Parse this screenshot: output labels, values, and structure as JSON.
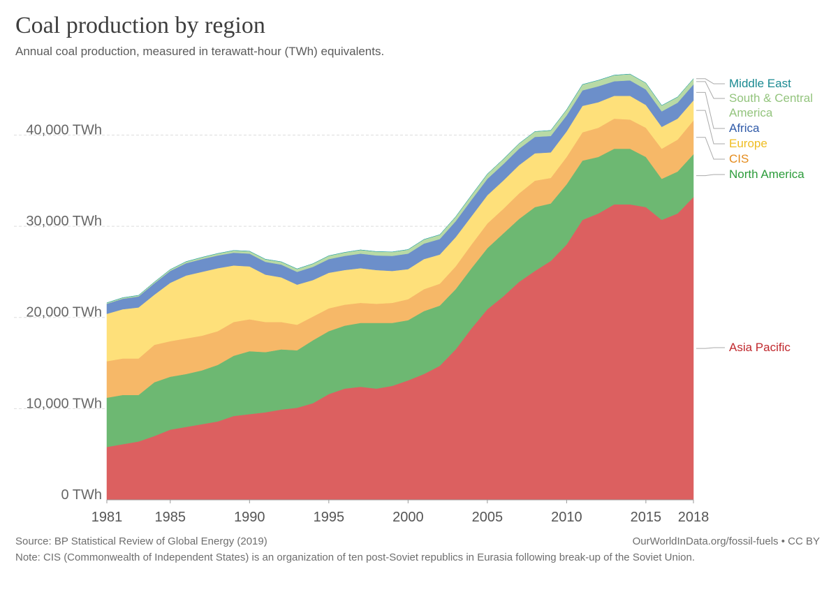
{
  "chart_data": {
    "type": "stacked-area",
    "title": "Coal production by region",
    "subtitle": "Annual coal production, measured in terawatt-hour (TWh) equivalents.",
    "source": "Source: BP Statistical Review of Global Energy (2019)",
    "url": "OurWorldInData.org/fossil-fuels • CC BY",
    "note": "Note: CIS (Commonwealth of Independent States) is an organization of ten post-Soviet republics in Eurasia following break-up of the Soviet Union.",
    "x": [
      1981,
      1982,
      1983,
      1984,
      1985,
      1986,
      1987,
      1988,
      1989,
      1990,
      1991,
      1992,
      1993,
      1994,
      1995,
      1996,
      1997,
      1998,
      1999,
      2000,
      2001,
      2002,
      2003,
      2004,
      2005,
      2006,
      2007,
      2008,
      2009,
      2010,
      2011,
      2012,
      2013,
      2014,
      2015,
      2016,
      2017,
      2018
    ],
    "xlim": [
      1981,
      2018
    ],
    "xticks": [
      1981,
      1985,
      1990,
      1995,
      2000,
      2005,
      2010,
      2015,
      2018
    ],
    "ylim": [
      0,
      47000
    ],
    "yticks": [
      {
        "value": 0,
        "label": "0 TWh"
      },
      {
        "value": 10000,
        "label": "10,000 TWh"
      },
      {
        "value": 20000,
        "label": "20,000 TWh"
      },
      {
        "value": 30000,
        "label": "30,000 TWh"
      },
      {
        "value": 40000,
        "label": "40,000 TWh"
      }
    ],
    "grid": true,
    "series": [
      {
        "name": "Asia Pacific",
        "color": "#dc6060",
        "label_color": "#c0282d",
        "values": [
          5800,
          6100,
          6400,
          7000,
          7700,
          8000,
          8300,
          8600,
          9200,
          9400,
          9600,
          9900,
          10100,
          10600,
          11600,
          12200,
          12400,
          12200,
          12500,
          13100,
          13800,
          14700,
          16500,
          18800,
          20900,
          22300,
          23900,
          25100,
          26200,
          28000,
          30700,
          31400,
          32400,
          32400,
          32100,
          30700,
          31400,
          33200
        ]
      },
      {
        "name": "North America",
        "color": "#6db872",
        "label_color": "#2c9c3b",
        "values": [
          5400,
          5400,
          5100,
          5900,
          5800,
          5800,
          5900,
          6200,
          6600,
          6900,
          6600,
          6600,
          6300,
          6900,
          6900,
          6900,
          7000,
          7200,
          6900,
          6600,
          6900,
          6600,
          6600,
          6600,
          6700,
          6900,
          6900,
          7000,
          6300,
          6600,
          6500,
          6200,
          6100,
          6100,
          5500,
          4500,
          4600,
          4700
        ]
      },
      {
        "name": "CIS",
        "color": "#f6b868",
        "label_color": "#e48b1c",
        "values": [
          4000,
          4000,
          4000,
          4100,
          3900,
          3900,
          3800,
          3700,
          3700,
          3500,
          3300,
          3000,
          2800,
          2600,
          2500,
          2300,
          2200,
          2100,
          2200,
          2300,
          2400,
          2400,
          2500,
          2600,
          2700,
          2700,
          2800,
          2900,
          2800,
          3000,
          3100,
          3200,
          3300,
          3200,
          3200,
          3300,
          3500,
          3700
        ]
      },
      {
        "name": "Europe",
        "color": "#fee07a",
        "label_color": "#efbd22",
        "values": [
          5200,
          5400,
          5600,
          5500,
          6400,
          6900,
          7000,
          6900,
          6200,
          5800,
          5200,
          4900,
          4400,
          4000,
          3900,
          3800,
          3800,
          3700,
          3500,
          3300,
          3300,
          3200,
          3200,
          3100,
          3100,
          3100,
          3100,
          3000,
          2800,
          2800,
          2900,
          2800,
          2500,
          2600,
          2500,
          2400,
          2300,
          2200
        ]
      },
      {
        "name": "Africa",
        "color": "#6c8fca",
        "label_color": "#2f5aa8",
        "values": [
          1100,
          1150,
          1200,
          1250,
          1300,
          1350,
          1400,
          1400,
          1400,
          1400,
          1400,
          1400,
          1400,
          1450,
          1500,
          1550,
          1600,
          1600,
          1650,
          1700,
          1700,
          1700,
          1750,
          1800,
          1800,
          1800,
          1800,
          1800,
          1800,
          1750,
          1700,
          1750,
          1600,
          1700,
          1700,
          1700,
          1750,
          1750
        ]
      },
      {
        "name": "South & Central America",
        "color": "#b8daa6",
        "label_color": "#93c47d",
        "values": [
          100,
          110,
          120,
          130,
          150,
          170,
          190,
          210,
          240,
          260,
          280,
          300,
          320,
          340,
          360,
          380,
          400,
          420,
          430,
          440,
          450,
          470,
          480,
          500,
          520,
          540,
          560,
          580,
          600,
          620,
          640,
          650,
          660,
          680,
          700,
          640,
          620,
          620
        ]
      },
      {
        "name": "Middle East",
        "color": "#2ba3a8",
        "label_color": "#1a8a91",
        "values": [
          10,
          10,
          10,
          10,
          10,
          10,
          10,
          10,
          10,
          10,
          10,
          10,
          10,
          10,
          10,
          10,
          10,
          10,
          10,
          10,
          10,
          10,
          10,
          10,
          10,
          10,
          10,
          10,
          10,
          10,
          10,
          10,
          10,
          10,
          10,
          10,
          10,
          10
        ]
      }
    ]
  }
}
